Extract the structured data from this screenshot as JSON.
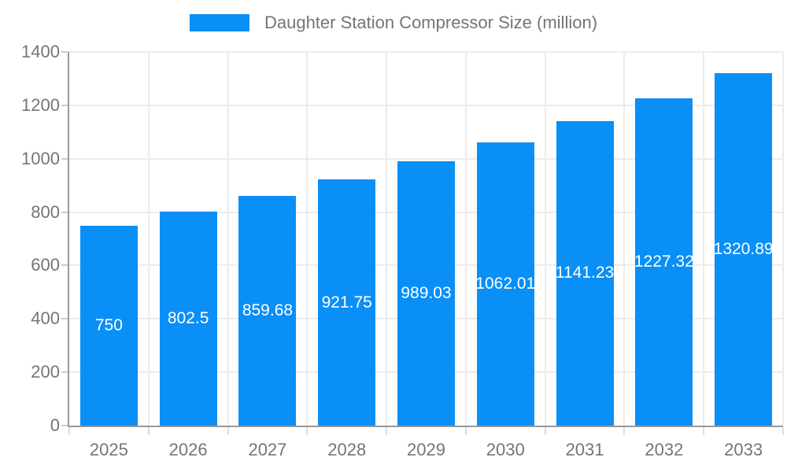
{
  "legend": {
    "label": "Daughter Station Compressor Size (million)"
  },
  "chart_data": {
    "type": "bar",
    "title": "Daughter Station Compressor Size (million)",
    "categories": [
      "2025",
      "2026",
      "2027",
      "2028",
      "2029",
      "2030",
      "2031",
      "2032",
      "2033"
    ],
    "series": [
      {
        "name": "Daughter Station Compressor Size (million)",
        "values": [
          750,
          802.5,
          859.68,
          921.75,
          989.03,
          1062.01,
          1141.23,
          1227.32,
          1320.89
        ]
      }
    ],
    "value_labels": [
      "750",
      "802.5",
      "859.68",
      "921.75",
      "989.03",
      "1062.01",
      "1141.23",
      "1227.32",
      "1320.89"
    ],
    "xlabel": "",
    "ylabel": "",
    "ylim": [
      0,
      1400
    ],
    "yticks": [
      0,
      200,
      400,
      600,
      800,
      1000,
      1200,
      1400
    ],
    "grid": true,
    "legend_position": "top-center",
    "bar_label_position": "inside-center",
    "colors": {
      "bar": "#0a8ff7",
      "axis_text": "#757575",
      "bar_label_text": "#ffffff",
      "grid_line": "#ececec",
      "axis_line": "#999999",
      "tick": "#cccccc",
      "background": "#ffffff"
    }
  }
}
